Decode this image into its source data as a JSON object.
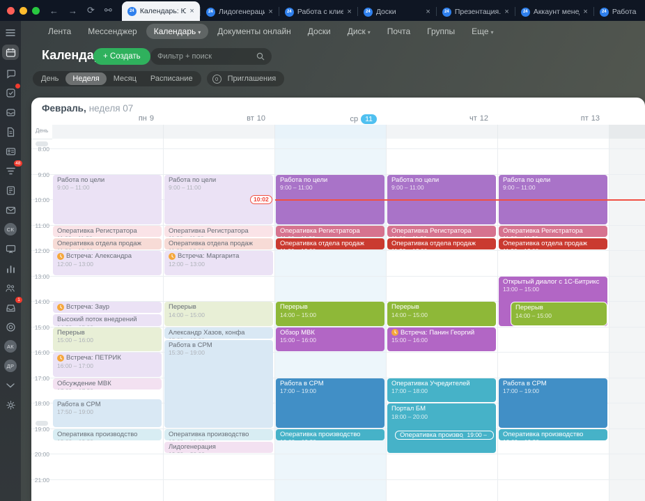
{
  "browser": {
    "tabs": [
      {
        "label": "Календарь: Юра В",
        "active": true
      },
      {
        "label": "Лидогенерация.bo",
        "active": false
      },
      {
        "label": "Работа с клиентом",
        "active": false
      },
      {
        "label": "Доски",
        "active": false
      },
      {
        "label": "Презентация.boar",
        "active": false
      },
      {
        "label": "Аккаунт менеджер",
        "active": false
      },
      {
        "label": "Работа",
        "active": false
      }
    ],
    "favicon_text": "24",
    "close_glyph": "×",
    "back_glyph": "←",
    "forward_glyph": "→",
    "reload_glyph": "⟳"
  },
  "topnav": {
    "items": [
      {
        "label": "Лента",
        "active": false,
        "chevron": false
      },
      {
        "label": "Мессенджер",
        "active": false,
        "chevron": false
      },
      {
        "label": "Календарь",
        "active": true,
        "chevron": true
      },
      {
        "label": "Документы онлайн",
        "active": false,
        "chevron": false
      },
      {
        "label": "Доски",
        "active": false,
        "chevron": false
      },
      {
        "label": "Диск",
        "active": false,
        "chevron": true
      },
      {
        "label": "Почта",
        "active": false,
        "chevron": false
      },
      {
        "label": "Группы",
        "active": false,
        "chevron": false
      },
      {
        "label": "Еще",
        "active": false,
        "chevron": true
      }
    ]
  },
  "header": {
    "title": "Календарь",
    "create_button": "+ Создать",
    "search_placeholder": "Фильтр + поиск"
  },
  "view_switcher": {
    "tabs": [
      {
        "label": "День",
        "active": false
      },
      {
        "label": "Неделя",
        "active": true
      },
      {
        "label": "Месяц",
        "active": false
      },
      {
        "label": "Расписание",
        "active": false
      }
    ],
    "invites_count": "0",
    "invites_label": "Приглашения"
  },
  "calendar": {
    "period_month": "Февраль,",
    "period_week": "неделя 07",
    "allday_label": "День",
    "now_label": "10:02",
    "days": [
      {
        "dow": "пн",
        "num": "9",
        "today": false,
        "weekend": false
      },
      {
        "dow": "вт",
        "num": "10",
        "today": false,
        "weekend": false
      },
      {
        "dow": "ср",
        "num": "11",
        "today": true,
        "weekend": false
      },
      {
        "dow": "чт",
        "num": "12",
        "today": false,
        "weekend": false
      },
      {
        "dow": "пт",
        "num": "13",
        "today": false,
        "weekend": false
      },
      {
        "dow": "",
        "num": "",
        "today": false,
        "weekend": true
      }
    ],
    "hours": [
      "8:00",
      "9:00",
      "10:00",
      "11:00",
      "12:00",
      "13:00",
      "14:00",
      "15:00",
      "16:00",
      "17:00",
      "18:00",
      "19:00",
      "20:00",
      "21:00"
    ],
    "events": [
      {
        "d": 0,
        "s": 9,
        "e": 11,
        "t": "Работа по цели",
        "tm": "9:00 – 11:00",
        "c": "pLav"
      },
      {
        "d": 0,
        "s": 11,
        "e": 11.5,
        "t": "Оперативка Регистратора",
        "tm": "11:00 – 11:30",
        "c": "pPink"
      },
      {
        "d": 0,
        "s": 11.5,
        "e": 12,
        "t": "Оперативка отдела продаж",
        "tm": "11:30 – 12:00",
        "c": "pSalmon"
      },
      {
        "d": 0,
        "s": 12,
        "e": 13,
        "t": "Встреча: Александра",
        "tm": "12:00 – 13:00",
        "c": "pLav",
        "ic": true
      },
      {
        "d": 0,
        "s": 14,
        "e": 14.5,
        "t": "Встреча: Заур",
        "tm": "14:00 – 14:30",
        "c": "pLav",
        "ic": true
      },
      {
        "d": 0,
        "s": 14.5,
        "e": 15,
        "t": "Высокий поток внедрений",
        "tm": "14:30 – 15:00",
        "c": "pLav"
      },
      {
        "d": 0,
        "s": 15,
        "e": 16,
        "t": "Перерыв",
        "tm": "15:00 – 16:00",
        "c": "pGreen"
      },
      {
        "d": 0,
        "s": 16,
        "e": 17,
        "t": "Встреча: ПЕТРИК",
        "tm": "16:00 – 17:00",
        "c": "pLav",
        "ic": true
      },
      {
        "d": 0,
        "s": 17,
        "e": 17.5,
        "t": "Обсуждение МВК",
        "tm": "17:00 – 17:30",
        "c": "pMag"
      },
      {
        "d": 0,
        "s": 17.83,
        "e": 19,
        "t": "Работа в СРМ",
        "tm": "17:50 – 19:00",
        "c": "pBlue"
      },
      {
        "d": 0,
        "s": 19,
        "e": 19.5,
        "t": "Оперативка производство",
        "tm": "19:00 – 19:30",
        "c": "pCyan"
      },
      {
        "d": 1,
        "s": 9,
        "e": 11,
        "t": "Работа по цели",
        "tm": "9:00 – 11:00",
        "c": "pLav"
      },
      {
        "d": 1,
        "s": 11,
        "e": 11.5,
        "t": "Оперативка Регистратора",
        "tm": "11:00 – 11:30",
        "c": "pPink"
      },
      {
        "d": 1,
        "s": 11.5,
        "e": 12,
        "t": "Оперативка отдела продаж",
        "tm": "11:30 – 12:00",
        "c": "pSalmon"
      },
      {
        "d": 1,
        "s": 12,
        "e": 13,
        "t": "Встреча: Маргарита",
        "tm": "12:00 – 13:00",
        "c": "pLav",
        "ic": true
      },
      {
        "d": 1,
        "s": 14,
        "e": 15,
        "t": "Перерыв",
        "tm": "14:00 – 15:00",
        "c": "pGreen"
      },
      {
        "d": 1,
        "s": 15,
        "e": 15.5,
        "t": "Александр Хазов, конфа",
        "tm": "15:00 – 15:30",
        "c": "pBlue"
      },
      {
        "d": 1,
        "s": 15.5,
        "e": 19,
        "t": "Работа в СРМ",
        "tm": "15:30 – 19:00",
        "c": "pBlue"
      },
      {
        "d": 1,
        "s": 19,
        "e": 19.5,
        "t": "Оперативка производство",
        "tm": "19:00 – 19:30",
        "c": "pCyan"
      },
      {
        "d": 1,
        "s": 19.5,
        "e": 20,
        "t": "Лидогенерация",
        "tm": "19:30 – 20:00",
        "c": "pMag"
      },
      {
        "d": 2,
        "s": 9,
        "e": 11,
        "t": "Работа по цели",
        "tm": "9:00 – 11:00",
        "c": "purple"
      },
      {
        "d": 2,
        "s": 11,
        "e": 11.5,
        "t": "Оперативка Регистратора",
        "tm": "11:00 – 11:30",
        "c": "rose"
      },
      {
        "d": 2,
        "s": 11.5,
        "e": 12,
        "t": "Оперативка отдела продаж",
        "tm": "11:30 – 12:00",
        "c": "red"
      },
      {
        "d": 2,
        "s": 14,
        "e": 15,
        "t": "Перерыв",
        "tm": "14:00 – 15:00",
        "c": "olive"
      },
      {
        "d": 2,
        "s": 15,
        "e": 16,
        "t": "Обзор МВК",
        "tm": "15:00 – 16:00",
        "c": "orchid"
      },
      {
        "d": 2,
        "s": 17,
        "e": 19,
        "t": "Работа в СРМ",
        "tm": "17:00 – 19:00",
        "c": "blue"
      },
      {
        "d": 2,
        "s": 19,
        "e": 19.5,
        "t": "Оперативка производство",
        "tm": "19:00 – 19:30",
        "c": "teal"
      },
      {
        "d": 3,
        "s": 9,
        "e": 11,
        "t": "Работа по цели",
        "tm": "9:00 – 11:00",
        "c": "purple"
      },
      {
        "d": 3,
        "s": 11,
        "e": 11.5,
        "t": "Оперативка Регистратора",
        "tm": "11:00 – 11:30",
        "c": "rose"
      },
      {
        "d": 3,
        "s": 11.5,
        "e": 12,
        "t": "Оперативка отдела продаж",
        "tm": "11:30 – 12:00",
        "c": "red"
      },
      {
        "d": 3,
        "s": 14,
        "e": 15,
        "t": "Перерыв",
        "tm": "14:00 – 15:00",
        "c": "olive"
      },
      {
        "d": 3,
        "s": 15,
        "e": 16,
        "t": "Встреча: Панин Георгий",
        "tm": "15:00 – 16:00",
        "c": "orchid",
        "ic": true
      },
      {
        "d": 3,
        "s": 17,
        "e": 18,
        "t": "Оперативка Учредителей",
        "tm": "17:00 – 18:00",
        "c": "teal"
      },
      {
        "d": 3,
        "s": 18,
        "e": 20,
        "t": "Портал БМ",
        "tm": "18:00 – 20:00",
        "c": "teal"
      },
      {
        "d": 3,
        "s": 19.06,
        "e": 19.48,
        "t": "Оперативка производство",
        "tm": "19:00 – 19",
        "c": "teal",
        "ov": true
      },
      {
        "d": 4,
        "s": 9,
        "e": 11,
        "t": "Работа по цели",
        "tm": "9:00 – 11:00",
        "c": "purple"
      },
      {
        "d": 4,
        "s": 11,
        "e": 11.5,
        "t": "Оперативка Регистратора",
        "tm": "11:00 – 11:30",
        "c": "rose"
      },
      {
        "d": 4,
        "s": 11.5,
        "e": 12,
        "t": "Оперативка отдела продаж",
        "tm": "11:30 – 12:00",
        "c": "red"
      },
      {
        "d": 4,
        "s": 13,
        "e": 15,
        "t": "Открытый диалог с 1С-Битрикс",
        "tm": "13:00 – 15:00",
        "c": "orchid"
      },
      {
        "d": 4,
        "s": 14,
        "e": 15,
        "t": "Перерыв",
        "tm": "14:00 – 15:00",
        "c": "olive",
        "bd": true,
        "il": 18
      },
      {
        "d": 4,
        "s": 17,
        "e": 19,
        "t": "Работа в СРМ",
        "tm": "17:00 – 19:00",
        "c": "blue"
      },
      {
        "d": 4,
        "s": 19,
        "e": 19.5,
        "t": "Оперативка производство",
        "tm": "19:00 – 19:30",
        "c": "teal"
      }
    ]
  },
  "palette": {
    "purple": "#a973c8",
    "orchid": "#b266c5",
    "rose": "#d6738f",
    "red": "#ca3a30",
    "olive": "#8eb838",
    "blue": "#418fc6",
    "teal": "#46b2c8",
    "pLav": "#ebe2f5",
    "pPink": "#fae3e7",
    "pSalmon": "#f7dbd6",
    "pGreen": "#e8efd6",
    "pBlue": "#d9e8f4",
    "pCyan": "#d8edf3",
    "pMag": "#f3e1f1",
    "today_col_bg": "#edf6fb",
    "weekend_col_bg": "#f3f5f6",
    "now_red": "#f05043",
    "today_pill": "#4fc0f0",
    "accent_green": "#2fb15d",
    "icon_orange": "#f5a73b"
  },
  "sidebar": {
    "items": [
      {
        "icon": "menu-icon"
      },
      {
        "icon": "calendar-icon",
        "active": true
      },
      {
        "icon": "chat-icon"
      },
      {
        "icon": "tasks-icon",
        "dot": true
      },
      {
        "icon": "tray-icon"
      },
      {
        "icon": "document-icon"
      },
      {
        "icon": "id-card-icon"
      },
      {
        "icon": "crm-funnel-icon",
        "badge": "48"
      },
      {
        "icon": "notes-icon"
      },
      {
        "icon": "mail-icon"
      },
      {
        "icon": "avatar",
        "label": "СК"
      },
      {
        "icon": "board-icon"
      },
      {
        "icon": "chart-icon"
      },
      {
        "icon": "people-icon"
      },
      {
        "icon": "inbox-icon",
        "badge": "1"
      },
      {
        "icon": "target-icon"
      },
      {
        "icon": "avatar",
        "label": "АК"
      },
      {
        "icon": "avatar",
        "label": "ДР"
      },
      {
        "icon": "chevron-down-icon"
      },
      {
        "icon": "gear-icon"
      }
    ]
  }
}
